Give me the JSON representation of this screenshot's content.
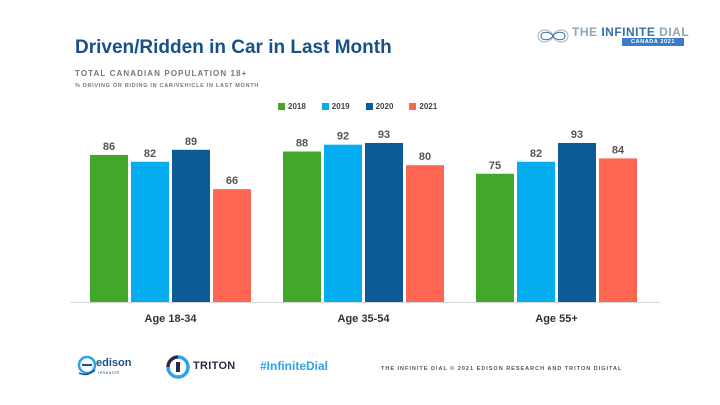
{
  "header": {
    "title": "Driven/Ridden in Car in Last Month",
    "subtitle": "TOTAL CANADIAN POPULATION 18+",
    "subtitle2": "% DRIVING OR RIDING IN CAR/VEHICLE IN LAST MONTH"
  },
  "brand": {
    "logo_light": "THE ",
    "logo_bold": "INFINITE",
    "logo_rest": " DIAL",
    "logo_sub": "CANADA 2021"
  },
  "colors": {
    "2018": "#41a829",
    "2019": "#03adef",
    "2020": "#0d5b96",
    "2021": "#ff6652"
  },
  "chart_data": {
    "type": "bar",
    "categories": [
      "Age 18-34",
      "Age 35-54",
      "Age 55+"
    ],
    "series": [
      {
        "name": "2018",
        "values": [
          86,
          88,
          75
        ]
      },
      {
        "name": "2019",
        "values": [
          82,
          92,
          82
        ]
      },
      {
        "name": "2020",
        "values": [
          89,
          93,
          93
        ]
      },
      {
        "name": "2021",
        "values": [
          66,
          80,
          84
        ]
      }
    ],
    "title": "Driven/Ridden in Car in Last Month",
    "ylim": [
      0,
      100
    ],
    "grid": false,
    "legend": "top-center"
  },
  "footer": {
    "edison": "edison",
    "edison_sub": "research",
    "triton": "TRITON",
    "hashtag": "#InfiniteDial",
    "copyright": "THE INFINITE DIAL   © 2021 EDISON RESEARCH AND TRITON DIGITAL"
  }
}
